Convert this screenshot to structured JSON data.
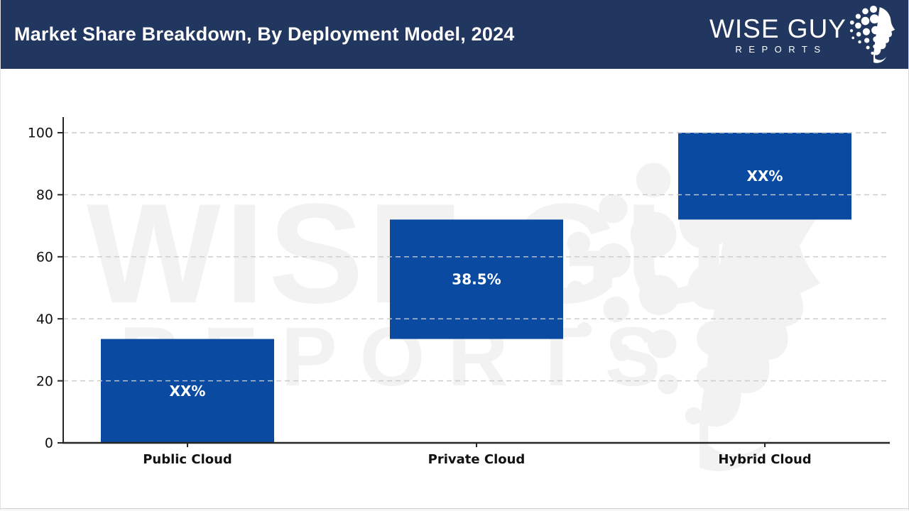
{
  "header": {
    "title": "Market Share Breakdown, By Deployment Model, 2024",
    "logo": {
      "line1": "WISE GUY",
      "line2": "REPORTS",
      "icon": "dotted-head-profile"
    }
  },
  "watermark": {
    "line1": "WISE GUY",
    "line2": "REPORTS",
    "icon": "dotted-head-profile"
  },
  "chart_data": {
    "type": "bar",
    "subtype": "floating-waterfall",
    "title": "Market Share Breakdown, By Deployment Model, 2024",
    "categories": [
      "Public Cloud",
      "Private Cloud",
      "Hybrid Cloud"
    ],
    "bars": [
      {
        "category": "Public Cloud",
        "start": 0,
        "end": 33.5,
        "label": "XX%"
      },
      {
        "category": "Private Cloud",
        "start": 33.5,
        "end": 72,
        "label": "38.5%"
      },
      {
        "category": "Hybrid Cloud",
        "start": 72,
        "end": 100,
        "label": "XX%"
      }
    ],
    "xlabel": "",
    "ylabel": "",
    "ylim": [
      0,
      100
    ],
    "yticks": [
      0,
      20,
      40,
      60,
      80,
      100
    ],
    "grid": "horizontal-dashed",
    "legend": "none",
    "bar_color": "#0b4aa1",
    "bar_label_color": "#ffffff"
  },
  "colors": {
    "header_bg": "#21375f",
    "bar": "#0b4aa1",
    "grid": "#c9c9c9",
    "axis": "#262626",
    "tick_text": "#111111",
    "watermark": "#f2f2f2"
  }
}
